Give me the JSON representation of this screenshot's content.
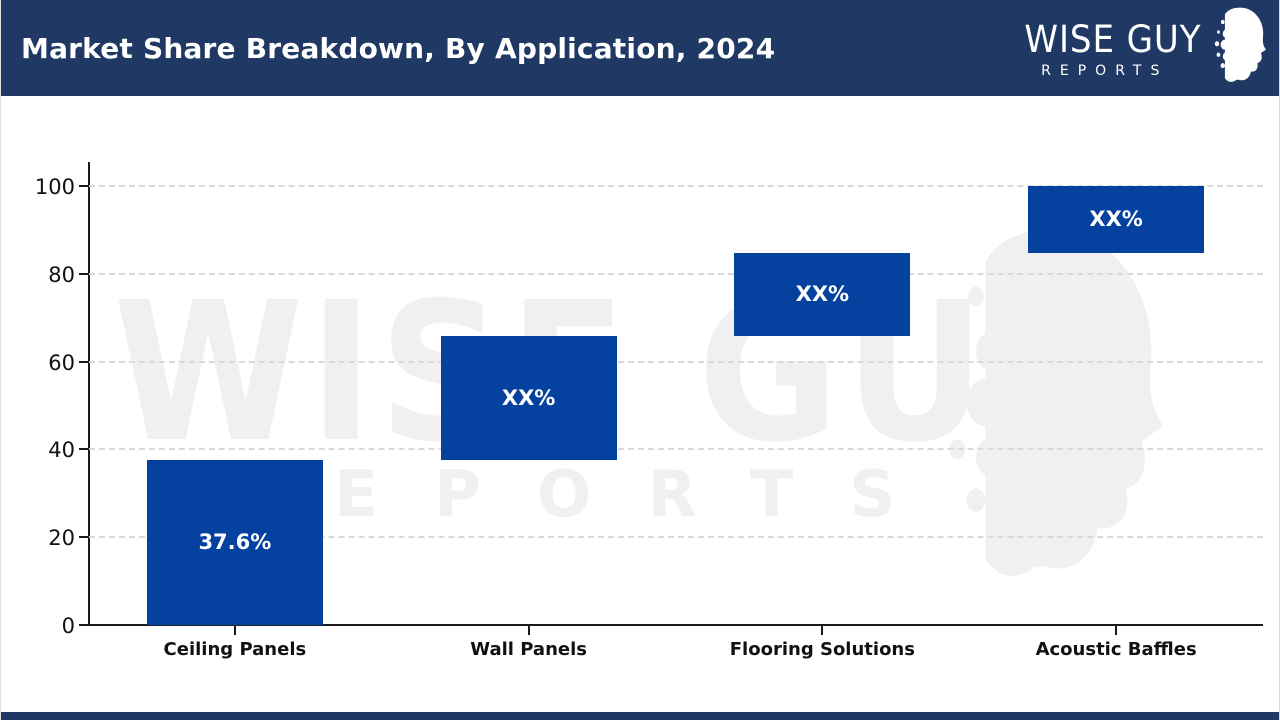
{
  "header": {
    "title": "Market Share Breakdown, By Application, 2024",
    "logo": {
      "line1": "WISE GUY",
      "line2": "REPORTS"
    }
  },
  "watermark": {
    "line1": "WISE GUY",
    "line2": "REPORTS"
  },
  "chart_data": {
    "type": "bar",
    "subtype": "waterfall-percentage-breakdown",
    "title": "Market Share Breakdown, By Application, 2024",
    "categories": [
      "Ceiling Panels",
      "Wall Panels",
      "Flooring Solutions",
      "Acoustic Baffles"
    ],
    "segments": [
      {
        "category": "Ceiling Panels",
        "start": 0,
        "end": 37.6,
        "label": "37.6%"
      },
      {
        "category": "Wall Panels",
        "start": 37.6,
        "end": 65.9,
        "label": "XX%"
      },
      {
        "category": "Flooring Solutions",
        "start": 65.9,
        "end": 84.8,
        "label": "XX%"
      },
      {
        "category": "Acoustic Baffles",
        "start": 84.8,
        "end": 100,
        "label": "XX%"
      }
    ],
    "yticks": [
      0,
      20,
      40,
      60,
      80,
      100
    ],
    "ylim": [
      0,
      106
    ],
    "xlabel": "",
    "ylabel": "",
    "grid": "horizontal-dashed",
    "legend": "none"
  },
  "colors": {
    "header_bg": "#1f3864",
    "footer_bg": "#1f3864",
    "bar": "#0542a0",
    "bar_label": "#ffffff",
    "grid": "#d9d9d9",
    "axis": "#1a1a1a",
    "watermark": "#f0f0f0"
  }
}
